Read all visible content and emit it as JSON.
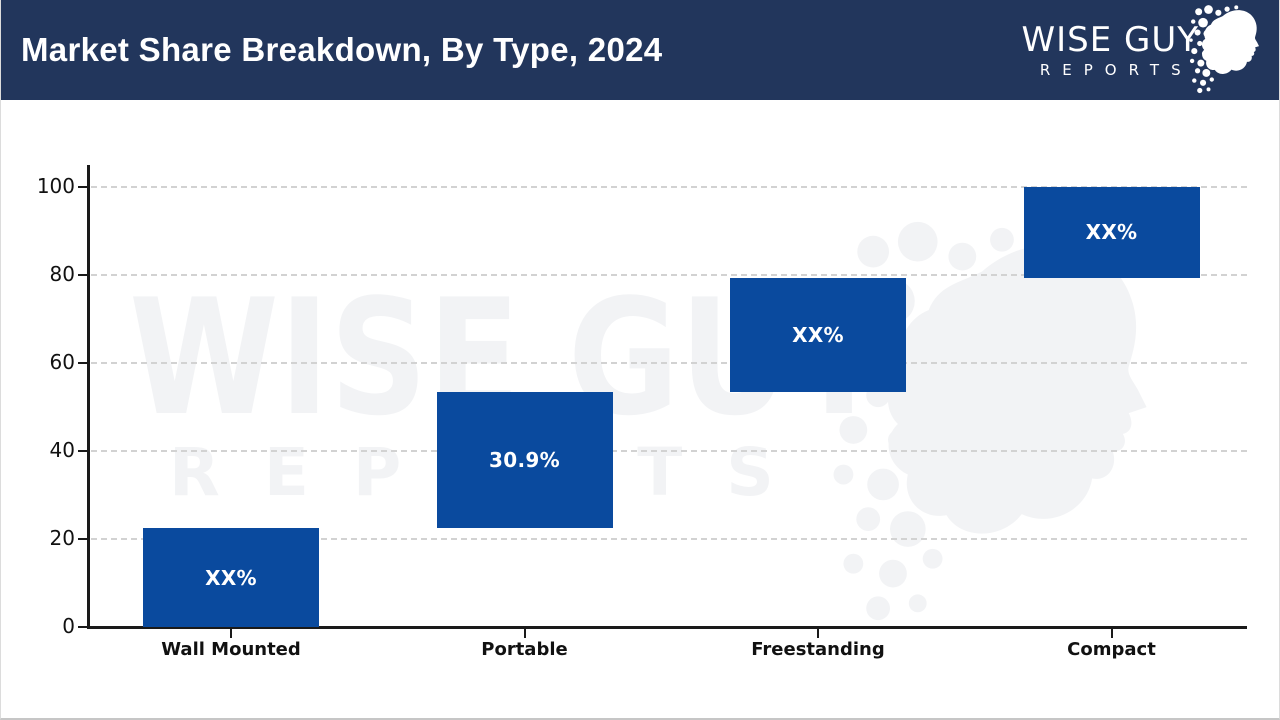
{
  "header": {
    "title": "Market Share Breakdown, By Type, 2024",
    "background_color": "#22365c",
    "logo": {
      "line1": "WISE GUY",
      "line2": "REPORTS"
    }
  },
  "watermark": {
    "line1": "WISE GUY",
    "line2": "REPORTS"
  },
  "chart_data": {
    "type": "bar",
    "subtype": "waterfall",
    "title": "Market Share Breakdown, By Type, 2024",
    "categories": [
      "Wall Mounted",
      "Portable",
      "Freestanding",
      "Compact"
    ],
    "segments": [
      {
        "category": "Wall Mounted",
        "start": 0,
        "end": 22.4,
        "label": "XX%"
      },
      {
        "category": "Portable",
        "start": 22.4,
        "end": 53.3,
        "label": "30.9%"
      },
      {
        "category": "Freestanding",
        "start": 53.3,
        "end": 79.4,
        "label": "XX%"
      },
      {
        "category": "Compact",
        "start": 79.4,
        "end": 100,
        "label": "XX%"
      }
    ],
    "y_ticks": [
      0,
      20,
      40,
      60,
      80,
      100
    ],
    "ylim": [
      0,
      105
    ],
    "xlabel": "",
    "ylabel": "",
    "grid": "horizontal-dashed",
    "legend": "none",
    "bar_color": "#0a4a9e",
    "grid_color": "#d2d2d2"
  }
}
